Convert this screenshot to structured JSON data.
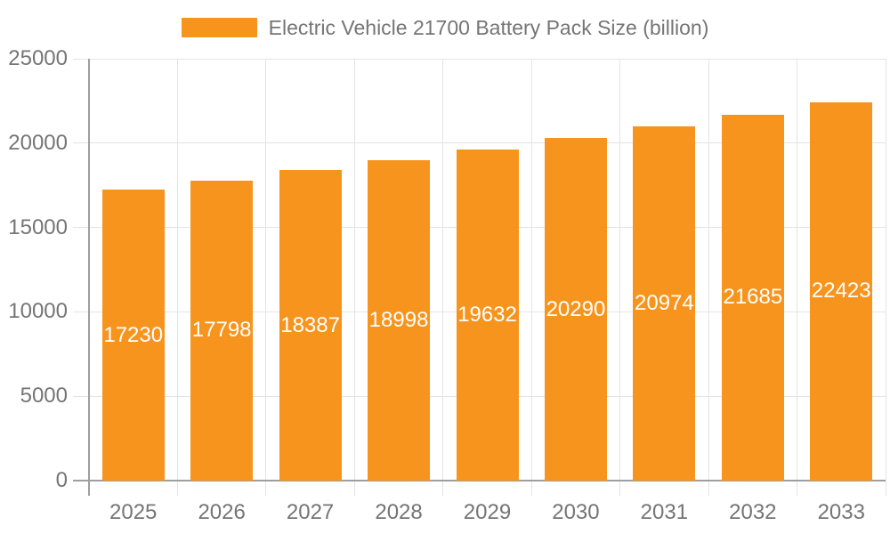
{
  "legend": {
    "label": "Electric Vehicle 21700 Battery Pack Size (billion)"
  },
  "chart_data": {
    "type": "bar",
    "title": "Electric Vehicle 21700 Battery Pack Size (billion)",
    "categories": [
      "2025",
      "2026",
      "2027",
      "2028",
      "2029",
      "2030",
      "2031",
      "2032",
      "2033"
    ],
    "values": [
      17230,
      17798,
      18387,
      18998,
      19632,
      20290,
      20974,
      21685,
      22423
    ],
    "xlabel": "",
    "ylabel": "",
    "ylim": [
      0,
      25000
    ],
    "yticks": [
      0,
      5000,
      10000,
      15000,
      20000,
      25000
    ],
    "grid": true,
    "legend_position": "top",
    "value_labels": "inside-center"
  },
  "colors": {
    "bar": "#F7941E",
    "grid": "#E4E4E4",
    "axis": "#9E9E9E",
    "text": "#757575",
    "value_label": "#FFFFFF",
    "background": "#FFFFFF"
  }
}
